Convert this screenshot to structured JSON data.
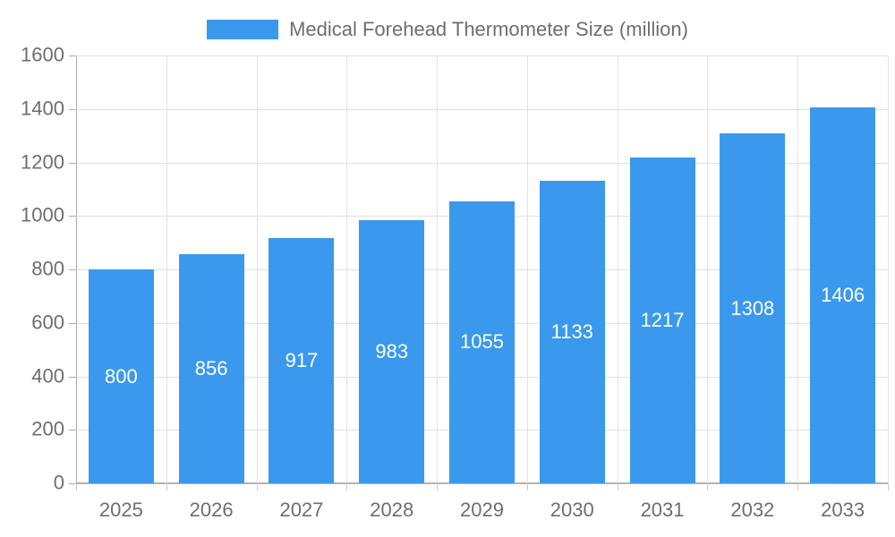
{
  "legend": {
    "label": "Medical Forehead Thermometer Size (million)",
    "swatch_color": "#3A99EC"
  },
  "chart_data": {
    "type": "bar",
    "title": "Medical Forehead Thermometer Size (million)",
    "series_name": "Medical Forehead Thermometer Size (million)",
    "categories": [
      "2025",
      "2026",
      "2027",
      "2028",
      "2029",
      "2030",
      "2031",
      "2032",
      "2033"
    ],
    "values": [
      800,
      856,
      917,
      983,
      1055,
      1133,
      1217,
      1308,
      1406
    ],
    "xlabel": "",
    "ylabel": "",
    "ylim": [
      0,
      1600
    ],
    "ytick_step": 200,
    "yticks": [
      0,
      200,
      400,
      600,
      800,
      1000,
      1200,
      1400,
      1600
    ],
    "grid": true,
    "legend_position": "top-center",
    "bar_color": "#3A99EC",
    "bar_label_color": "#FFFFFF",
    "bar_label_position": "inside-center"
  },
  "colors": {
    "background": "#FFFFFF",
    "grid_h": "#E0E0E0",
    "grid_v": "#E3E3E3",
    "axis": "#B3B3B3",
    "tick_text": "#6E6E6E"
  }
}
